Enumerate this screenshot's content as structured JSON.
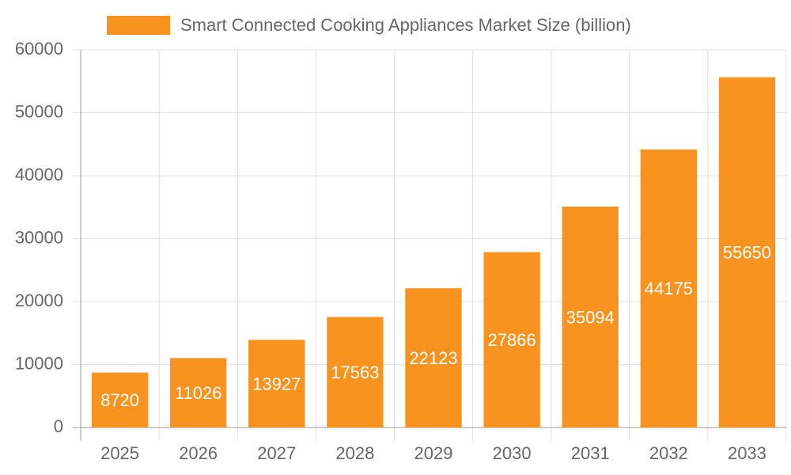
{
  "chart_data": {
    "type": "bar",
    "legend": "Smart Connected Cooking Appliances Market Size (billion)",
    "categories": [
      "2025",
      "2026",
      "2027",
      "2028",
      "2029",
      "2030",
      "2031",
      "2032",
      "2033"
    ],
    "values": [
      8720,
      11026,
      13927,
      17563,
      22123,
      27866,
      35094,
      44175,
      55650
    ],
    "color": "#f7931e",
    "ylim": [
      0,
      60000
    ],
    "yticks": [
      0,
      10000,
      20000,
      30000,
      40000,
      50000,
      60000
    ],
    "grid": true
  }
}
